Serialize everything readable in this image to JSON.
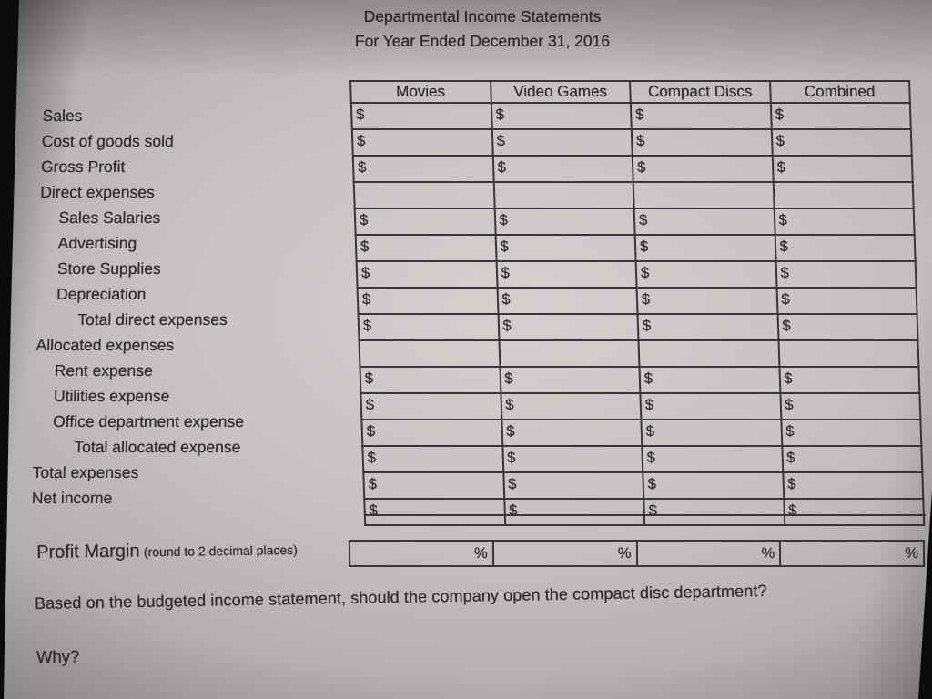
{
  "photo": {
    "background_color": "#0b0a0c",
    "paper_color": "#c7c2c1",
    "ink_color": "#2e292b",
    "table_line_color": "#3b3536"
  },
  "title": {
    "line1": "Departmental Income Statements",
    "line2": "For Year Ended December 31, 2016"
  },
  "table": {
    "currency_symbol": "$",
    "columns": [
      "Movies",
      "Video Games",
      "Compact Discs",
      "Combined"
    ],
    "rows": [
      {
        "label": "Sales",
        "indent": 0,
        "type": "money"
      },
      {
        "label": "Cost of goods sold",
        "indent": 0,
        "type": "money"
      },
      {
        "label": "Gross Profit",
        "indent": 0,
        "type": "money"
      },
      {
        "label": "Direct expenses",
        "indent": 0,
        "type": "section"
      },
      {
        "label": "Sales Salaries",
        "indent": 1,
        "type": "money"
      },
      {
        "label": "Advertising",
        "indent": 1,
        "type": "money"
      },
      {
        "label": "Store Supplies",
        "indent": 1,
        "type": "money"
      },
      {
        "label": "Depreciation",
        "indent": 1,
        "type": "money"
      },
      {
        "label": "Total direct expenses",
        "indent": 2,
        "type": "money"
      },
      {
        "label": "Allocated expenses",
        "indent": 0,
        "type": "section"
      },
      {
        "label": "Rent expense",
        "indent": 1,
        "type": "money"
      },
      {
        "label": "Utilities expense",
        "indent": 1,
        "type": "money"
      },
      {
        "label": "Office department expense",
        "indent": 1,
        "type": "money"
      },
      {
        "label": "Total allocated expense",
        "indent": 2,
        "type": "money"
      },
      {
        "label": "Total expenses",
        "indent": 0,
        "type": "money"
      },
      {
        "label": "Net income",
        "indent": 0,
        "type": "money"
      }
    ]
  },
  "profit_margin": {
    "label": "Profit Margin",
    "note": "(round to 2 decimal places)",
    "unit": "%"
  },
  "question": "Based on the budgeted income statement, should the company open the compact disc department?",
  "why_label": "Why?"
}
